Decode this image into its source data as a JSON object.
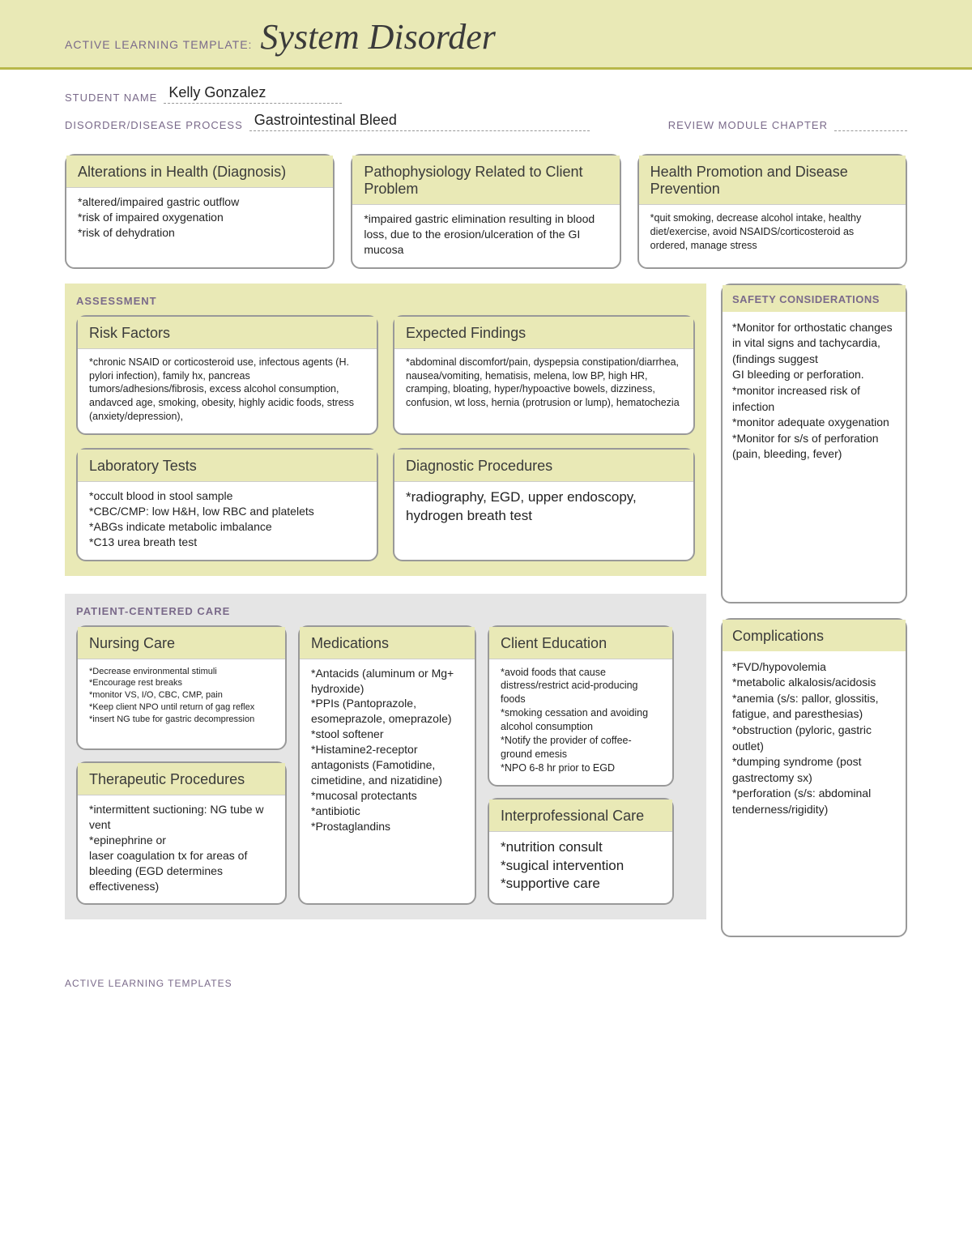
{
  "colors": {
    "band": "#e9e9b6",
    "band_border": "#b8b84a",
    "section_bg": "#e5e5e5",
    "label_color": "#7a6a8a",
    "card_border": "#999999",
    "text": "#222222"
  },
  "header": {
    "prefix": "ACTIVE LEARNING TEMPLATE:",
    "title": "System Disorder"
  },
  "info": {
    "student_label": "STUDENT NAME",
    "student_value": "Kelly Gonzalez",
    "disorder_label": "DISORDER/DISEASE PROCESS",
    "disorder_value": "Gastrointestinal Bleed",
    "review_label": "REVIEW MODULE CHAPTER",
    "review_value": ""
  },
  "row1": {
    "alterations": {
      "title": "Alterations in Health (Diagnosis)",
      "body": "*altered/impaired gastric outflow\n*risk of impaired oxygenation\n*risk of dehydration"
    },
    "pathophys": {
      "title": "Pathophysiology Related to Client Problem",
      "body": "*impaired gastric elimination resulting in blood loss, due to the erosion/ulceration of the GI mucosa"
    },
    "promotion": {
      "title": "Health Promotion and Disease Prevention",
      "body": "*quit smoking, decrease alcohol intake, healthy diet/exercise, avoid NSAIDS/corticosteroid as ordered, manage stress"
    }
  },
  "assessment": {
    "label": "ASSESSMENT",
    "risk": {
      "title": "Risk Factors",
      "body": "*chronic NSAID or corticosteroid use, infectous agents (H. pylori infection), family hx, pancreas tumors/adhesions/fibrosis, excess alcohol consumption, andavced age, smoking, obesity, highly acidic foods, stress (anxiety/depression),"
    },
    "findings": {
      "title": "Expected Findings",
      "body": "*abdominal discomfort/pain, dyspepsia constipation/diarrhea, nausea/vomiting, hematisis, melena, low BP, high HR, cramping, bloating, hyper/hypoactive bowels, dizziness, confusion, wt loss, hernia (protrusion or lump), hematochezia"
    },
    "labs": {
      "title": "Laboratory Tests",
      "body": "*occult blood in stool sample\n*CBC/CMP: low H&H, low RBC and platelets\n*ABGs indicate metabolic imbalance\n*C13 urea breath test"
    },
    "diag": {
      "title": "Diagnostic Procedures",
      "body": "*radiography, EGD, upper endoscopy, hydrogen breath test"
    }
  },
  "safety": {
    "label": "SAFETY CONSIDERATIONS",
    "body": "*Monitor for orthostatic changes in vital signs and tachycardia, (findings suggest\nGI bleeding or perforation.\n*monitor increased risk of infection\n*monitor adequate oxygenation\n*Monitor for s/s of perforation (pain, bleeding, fever)"
  },
  "pcc": {
    "label": "PATIENT-CENTERED CARE",
    "nursing": {
      "title": "Nursing Care",
      "body": "*Decrease environmental stimuli\n*Encourage rest breaks\n*monitor VS, I/O, CBC, CMP, pain\n*Keep client NPO until return of gag reflex\n*insert NG tube for gastric decompression"
    },
    "therapeutic": {
      "title": "Therapeutic Procedures",
      "body": "*intermittent suctioning: NG tube w vent\n*epinephrine or\nlaser coagulation tx for areas of bleeding (EGD determines effectiveness)"
    },
    "meds": {
      "title": "Medications",
      "body": "*Antacids (aluminum or Mg+ hydroxide)\n*PPIs (Pantoprazole, esomeprazole, omeprazole)\n*stool softener\n*Histamine2-receptor antagonists (Famotidine, cimetidine, and nizatidine)\n*mucosal protectants\n*antibiotic\n*Prostaglandins"
    },
    "education": {
      "title": "Client Education",
      "body": "*avoid foods that cause distress/restrict acid-producing foods\n*smoking cessation and avoiding alcohol consumption\n*Notify the provider of coffee-ground emesis\n*NPO 6-8 hr prior to EGD"
    },
    "interprof": {
      "title": "Interprofessional Care",
      "body": "*nutrition consult\n*sugical intervention\n*supportive care"
    }
  },
  "complications": {
    "title": "Complications",
    "body": "*FVD/hypovolemia\n*metabolic alkalosis/acidosis\n*anemia (s/s: pallor, glossitis, fatigue, and paresthesias)\n*obstruction (pyloric, gastric outlet)\n*dumping syndrome (post gastrectomy sx)\n*perforation (s/s: abdominal tenderness/rigidity)"
  },
  "footer": "ACTIVE LEARNING TEMPLATES"
}
